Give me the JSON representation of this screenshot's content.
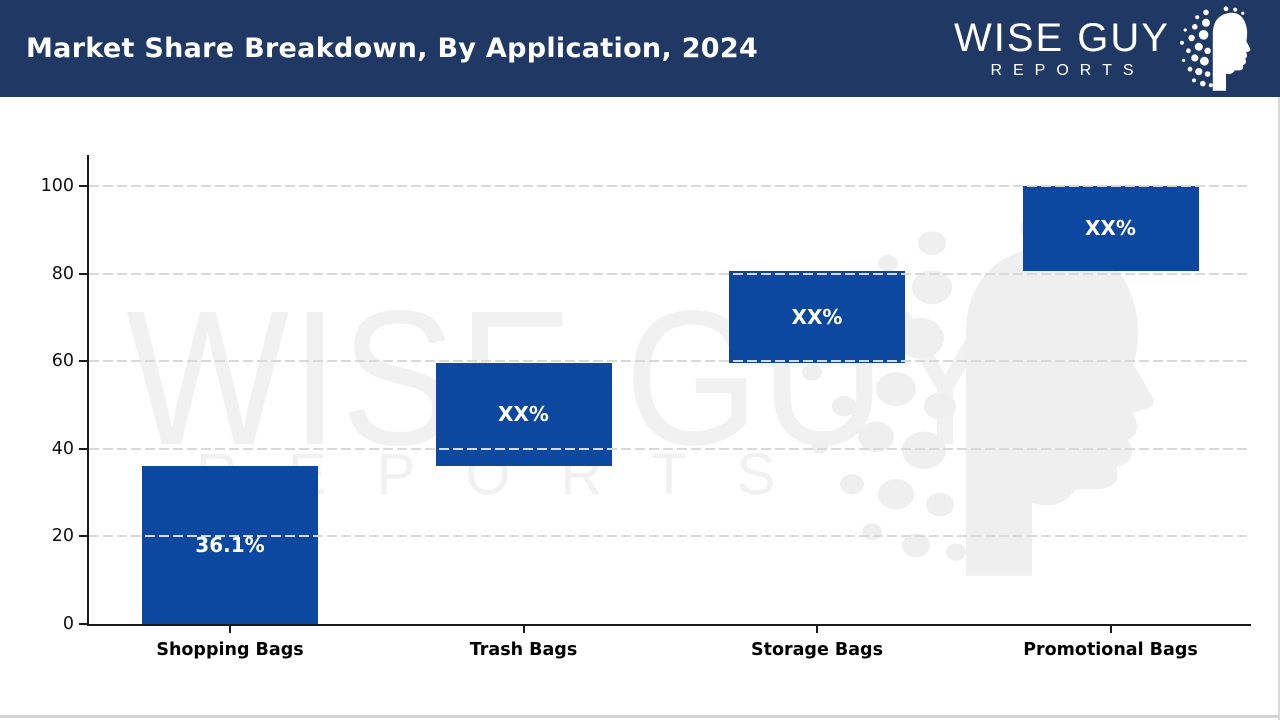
{
  "header": {
    "title": "Market Share Breakdown, By Application, 2024",
    "logo": {
      "line1": "WISE GUY",
      "line2": "REPORTS"
    }
  },
  "watermark": {
    "line1": "WISE GUY",
    "line2": "REPORTS"
  },
  "chart_data": {
    "type": "bar",
    "subtype": "waterfall",
    "title": "Market Share Breakdown, By Application, 2024",
    "categories": [
      "Shopping Bags",
      "Trash Bags",
      "Storage Bags",
      "Promotional Bags"
    ],
    "segments": [
      {
        "category": "Shopping Bags",
        "start": 0,
        "end": 36.1,
        "value": 36.1,
        "label": "36.1%"
      },
      {
        "category": "Trash Bags",
        "start": 36.1,
        "end": 59.7,
        "value": 23.6,
        "label": "XX%"
      },
      {
        "category": "Storage Bags",
        "start": 59.7,
        "end": 80.7,
        "value": 21.0,
        "label": "XX%"
      },
      {
        "category": "Promotional Bags",
        "start": 80.7,
        "end": 100,
        "value": 19.3,
        "label": "XX%"
      }
    ],
    "y_ticks": [
      0,
      20,
      40,
      60,
      80,
      100
    ],
    "ylim": [
      0,
      107
    ],
    "xlabel": "",
    "ylabel": "",
    "grid": "horizontal-dashed",
    "legend": "none",
    "bar_color": "#0c48a0",
    "bar_label_color": "#ffffff"
  },
  "colors": {
    "header_bg": "#1f3864",
    "bar_fill": "#0c48a0",
    "axis": "#1a1a1a",
    "gridline": "#d9d9d9",
    "tick_label": "#111111",
    "category_label": "#000000",
    "watermark": "#f1f1f1",
    "edge_rule": "#d4d4d4"
  }
}
